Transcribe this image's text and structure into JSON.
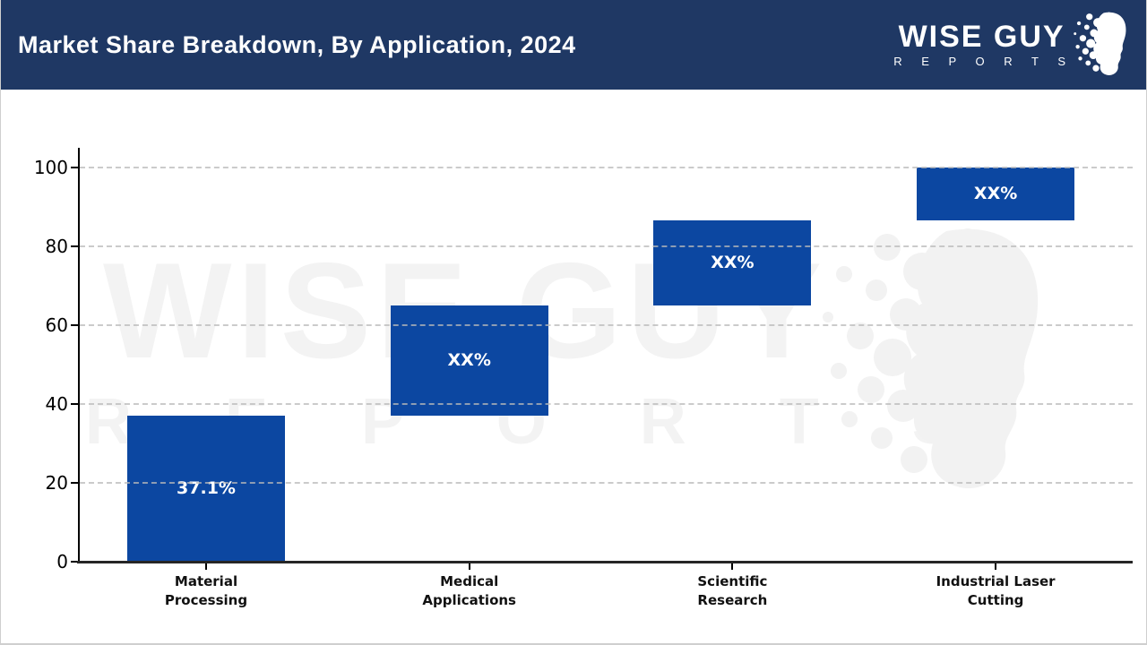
{
  "header": {
    "title": "Market Share Breakdown, By Application, 2024",
    "bg_color": "#1f3864"
  },
  "brand": {
    "line1": "WISE GUY",
    "line2": "R E P O R T S"
  },
  "watermark": {
    "line1": "WISE GUY",
    "line2": "R E P O R T S"
  },
  "chart_data": {
    "type": "bar",
    "subtype": "waterfall",
    "title": "Market Share Breakdown, By Application, 2024",
    "categories": [
      [
        "Material",
        "Processing"
      ],
      [
        "Medical",
        "Applications"
      ],
      [
        "Scientific",
        "Research"
      ],
      [
        "Industrial Laser",
        "Cutting"
      ]
    ],
    "segments": [
      {
        "start": 0,
        "end": 37.1,
        "value": 37.1,
        "label": "37.1%"
      },
      {
        "start": 37.1,
        "end": 65.0,
        "value": 27.9,
        "label": "XX%"
      },
      {
        "start": 65.0,
        "end": 86.6,
        "value": 21.6,
        "label": "XX%"
      },
      {
        "start": 86.6,
        "end": 100.0,
        "value": 13.4,
        "label": "XX%"
      }
    ],
    "ylim": [
      0,
      100
    ],
    "yticks": [
      0,
      20,
      40,
      60,
      80,
      100
    ],
    "grid": "horizontal-dashed",
    "legend": "none",
    "bar_color": "#0c47a1",
    "bar_label_color": "#ffffff",
    "axis_color": "#000000",
    "gridline_color": "#bdbdbd"
  }
}
